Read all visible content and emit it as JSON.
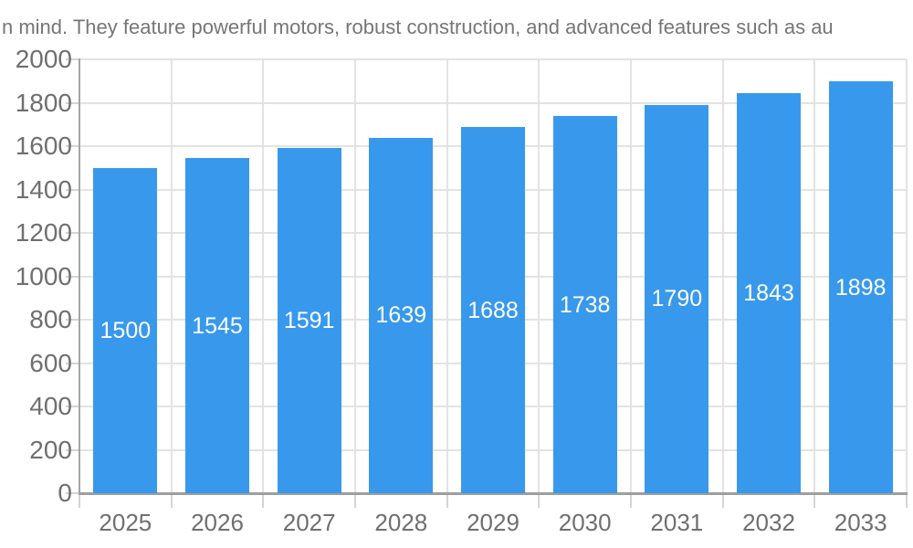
{
  "title": {
    "text": "n mind. They feature powerful motors, robust construction, and advanced features such as au"
  },
  "chart_data": {
    "type": "bar",
    "title": "n mind. They feature powerful motors, robust construction, and advanced features such as au",
    "categories": [
      "2025",
      "2026",
      "2027",
      "2028",
      "2029",
      "2030",
      "2031",
      "2032",
      "2033"
    ],
    "values": [
      1500,
      1545,
      1591,
      1639,
      1688,
      1738,
      1790,
      1843,
      1898
    ],
    "bar_value_labels": [
      "1500",
      "1545",
      "1591",
      "1639",
      "1688",
      "1738",
      "1790",
      "1843",
      "1898"
    ],
    "xlabel": "",
    "ylabel": "",
    "ylim": [
      0,
      2000
    ],
    "ytick_step": 200,
    "yticks": [
      0,
      200,
      400,
      600,
      800,
      1000,
      1200,
      1400,
      1600,
      1800,
      2000
    ],
    "grid": true,
    "legend": false,
    "colors": {
      "bar": "#3899ec",
      "bar_label": "#ffffff",
      "gridline": "#e3e3e3",
      "axis": "#9e9e9e",
      "tick": "#d4d4d4",
      "axis_label": "#6f6f6f",
      "title": "#767676",
      "background": "#ffffff"
    }
  }
}
